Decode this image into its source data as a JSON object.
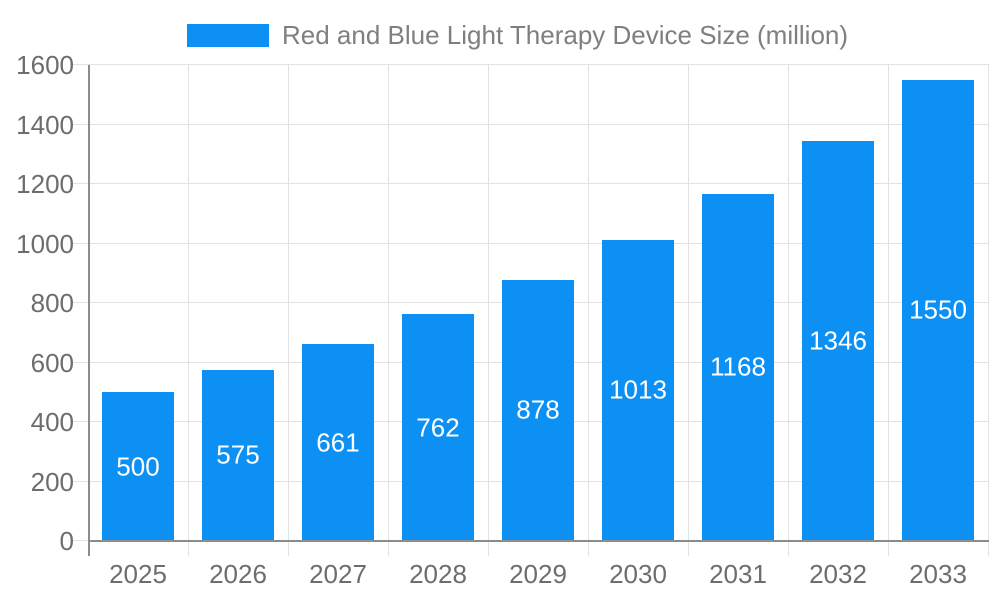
{
  "chart_data": {
    "type": "bar",
    "title": "Red and Blue Light Therapy Device Size (million)",
    "legend_entries": [
      "Red and Blue Light Therapy Device Size (million)"
    ],
    "legend_position": "top",
    "categories": [
      "2025",
      "2026",
      "2027",
      "2028",
      "2029",
      "2030",
      "2031",
      "2032",
      "2033"
    ],
    "values": [
      500,
      575,
      661,
      762,
      878,
      1013,
      1168,
      1346,
      1550
    ],
    "y_ticks": [
      0,
      200,
      400,
      600,
      800,
      1000,
      1200,
      1400,
      1600
    ],
    "ylim": [
      0,
      1600
    ],
    "xlabel": "",
    "ylabel": "",
    "grid": true,
    "bar_value_labels_shown": true,
    "colors": {
      "bar": "#0d90f4",
      "bar_value_label": "#ffffff",
      "axis_line": "#8c8c8c",
      "gridline": "#e2e2e2",
      "tick_label": "#6d6d6d",
      "legend_text": "#7f7f7f",
      "background": "#ffffff"
    }
  }
}
